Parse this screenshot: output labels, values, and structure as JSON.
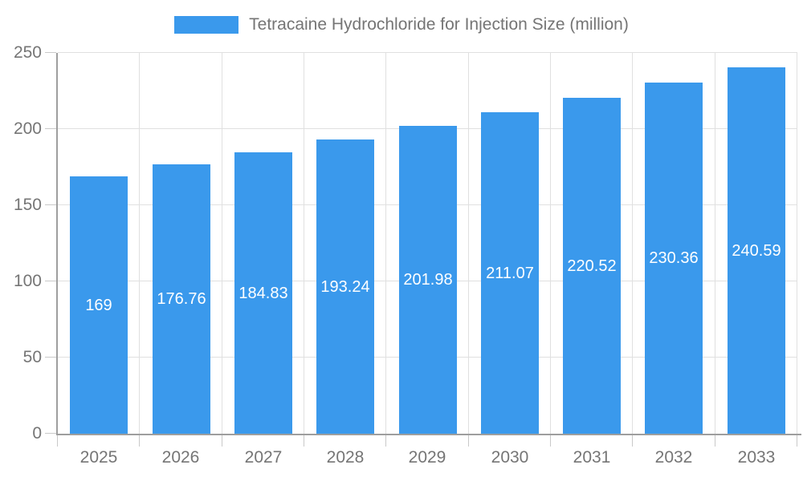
{
  "colors": {
    "bar": "#3a99ec",
    "axis_line": "#9e9e9e",
    "gridline": "#e0e0e0",
    "axis_text": "#757575",
    "value_label_text": "#ffffff",
    "background": "#ffffff"
  },
  "legend": {
    "label": "Tetracaine Hydrochloride for Injection Size (million)"
  },
  "chart_data": {
    "type": "bar",
    "title": "Tetracaine Hydrochloride for Injection Size (million)",
    "categories": [
      "2025",
      "2026",
      "2027",
      "2028",
      "2029",
      "2030",
      "2031",
      "2032",
      "2033"
    ],
    "values": [
      169,
      176.76,
      184.83,
      193.24,
      201.98,
      211.07,
      220.52,
      230.36,
      240.59
    ],
    "value_labels": [
      "169",
      "176.76",
      "184.83",
      "193.24",
      "201.98",
      "211.07",
      "220.52",
      "230.36",
      "240.59"
    ],
    "xlabel": "",
    "ylabel": "",
    "ylim": [
      0,
      250
    ],
    "yticks": [
      0,
      50,
      100,
      150,
      200,
      250
    ],
    "grid": true,
    "legend_position": "top",
    "bar_label_position": "center"
  }
}
